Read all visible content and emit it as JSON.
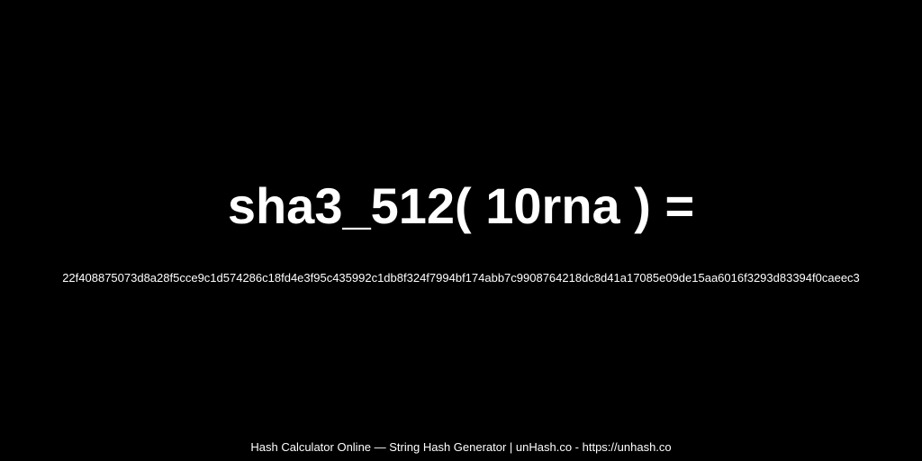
{
  "background_color": "#000000",
  "text_color": "#ffffff",
  "title": {
    "text": "sha3_512( 10rna ) =",
    "fontsize": 56,
    "fontweight": "bold"
  },
  "hash_output": {
    "text": "22f408875073d8a28f5cce9c1d574286c18fd4e3f95c435992c1db8f324f7994bf174abb7c9908764218dc8d41a17085e09de15aa6016f3293d83394f0caeec3",
    "fontsize": 13
  },
  "footer": {
    "text": "Hash Calculator Online — String Hash Generator | unHash.co - https://unhash.co",
    "fontsize": 13
  }
}
